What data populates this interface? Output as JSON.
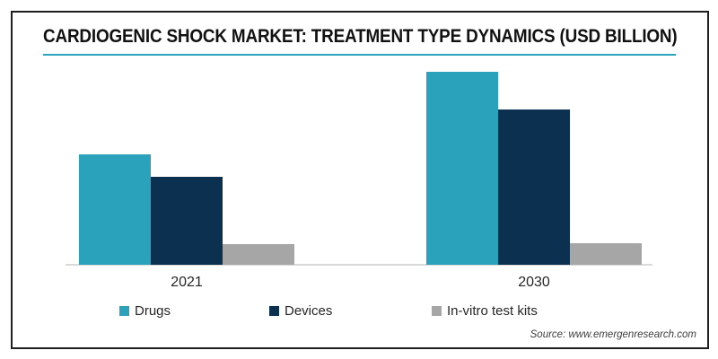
{
  "title": "CARDIOGENIC SHOCK MARKET: TREATMENT TYPE DYNAMICS (USD BILLION)",
  "chart_data": {
    "type": "bar",
    "title": "CARDIOGENIC SHOCK MARKET: TREATMENT TYPE DYNAMICS (USD BILLION)",
    "unit": "USD Billion",
    "categories": [
      "2021",
      "2030"
    ],
    "series": [
      {
        "name": "Drugs",
        "color": "#2AA2BB",
        "values": [
          2.45,
          4.3
        ]
      },
      {
        "name": "Devices",
        "color": "#0B3050",
        "values": [
          1.95,
          3.45
        ]
      },
      {
        "name": "In-vitro test kits",
        "color": "#A6A6A6",
        "values": [
          0.45,
          0.48
        ]
      }
    ],
    "ylim": [
      0,
      4.5
    ],
    "grid": false,
    "value_axis_hidden": true,
    "legend_position": "bottom"
  },
  "source": {
    "label": "Source: www.emergenresearch.com"
  },
  "colors": {
    "title_underline": "#2BA4BE",
    "axis_line": "#D9D9D9",
    "frame_border": "#1F1F1F"
  }
}
